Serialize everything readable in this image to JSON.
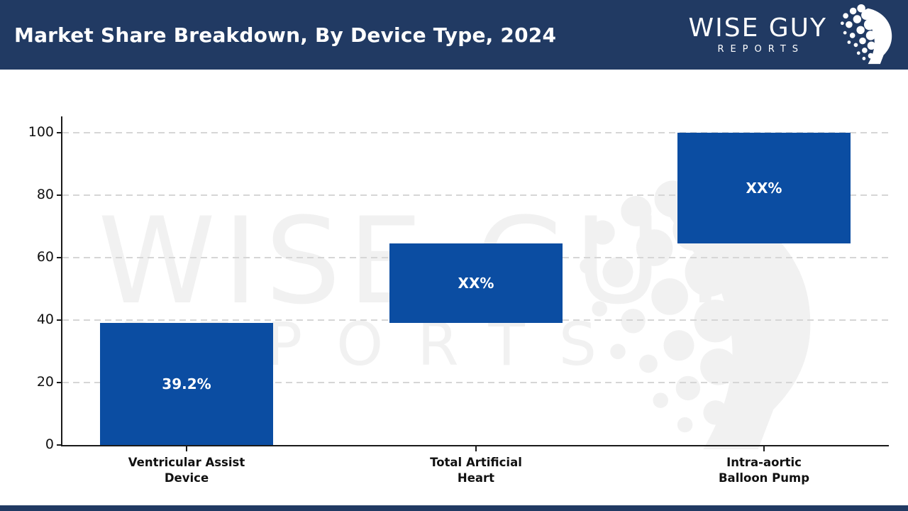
{
  "header": {
    "title": "Market Share Breakdown, By Device Type, 2024",
    "logo": {
      "line1": "WISE GUY",
      "line2": "REPORTS"
    }
  },
  "watermark": {
    "line1": "WISE GUY",
    "line2": "REPORTS"
  },
  "footer": {
    "visible": true
  },
  "colors": {
    "header_bg": "#213a63",
    "footer_bg": "#213a63",
    "bar": "#0b4da2",
    "bar_label": "#ffffff",
    "grid": "#d6d6d6",
    "axis": "#1a1a1a",
    "watermark": "#f1f1f1"
  },
  "chart_data": {
    "type": "bar",
    "variant": "waterfall",
    "title": "Market Share Breakdown, By Device Type, 2024",
    "categories": [
      "Ventricular Assist Device",
      "Total Artificial Heart",
      "Intra-aortic Balloon Pump"
    ],
    "category_tick_labels": [
      "Ventricular Assist\nDevice",
      "Total Artificial\nHeart",
      "Intra-aortic\nBalloon Pump"
    ],
    "segments": [
      {
        "category": "Ventricular Assist Device",
        "from": 0,
        "to": 39.2,
        "value": 39.2,
        "label": "39.2%"
      },
      {
        "category": "Total Artificial Heart",
        "from": 39.2,
        "to": 64.5,
        "value": 25.3,
        "label": "XX%"
      },
      {
        "category": "Intra-aortic Balloon Pump",
        "from": 64.5,
        "to": 100,
        "value": 35.5,
        "label": "XX%"
      }
    ],
    "ylim": [
      0,
      100
    ],
    "yticks": [
      0,
      20,
      40,
      60,
      80,
      100
    ],
    "xlabel": "",
    "ylabel": "",
    "grid": {
      "horizontal": true,
      "style": "dashed"
    },
    "legend": "none",
    "bar_color": "#0b4da2",
    "bar_label_color": "#ffffff"
  }
}
